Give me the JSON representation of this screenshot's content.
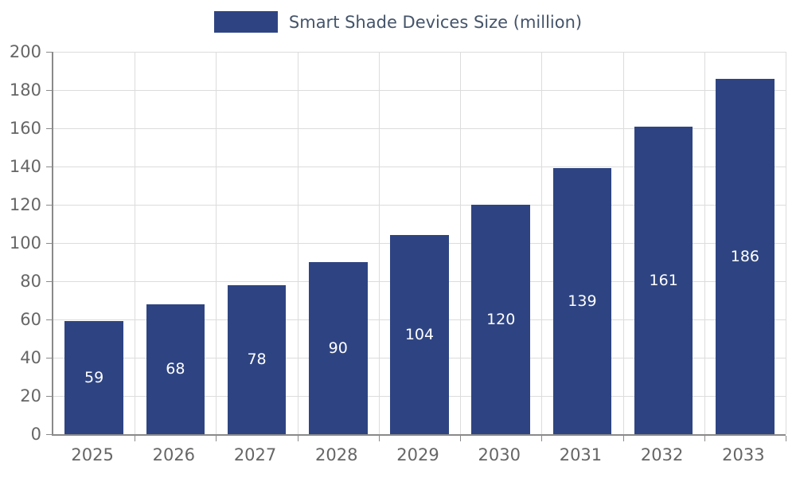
{
  "chart_data": {
    "type": "bar",
    "title": "Smart Shade Devices Size (million)",
    "categories": [
      "2025",
      "2026",
      "2027",
      "2028",
      "2029",
      "2030",
      "2031",
      "2032",
      "2033"
    ],
    "values": [
      59,
      68,
      78,
      90,
      104,
      120,
      139,
      161,
      186
    ],
    "xlabel": "",
    "ylabel": "",
    "ylim": [
      0,
      200
    ],
    "ytick_step": 20,
    "grid": true,
    "legend_position": "top",
    "colors": {
      "bar": "#2e4482",
      "title_text": "#44546a",
      "value_label": "#ffffff",
      "axis": "#8a8a8a",
      "gridline": "#dcdcdc",
      "tick_text": "#666666"
    }
  }
}
